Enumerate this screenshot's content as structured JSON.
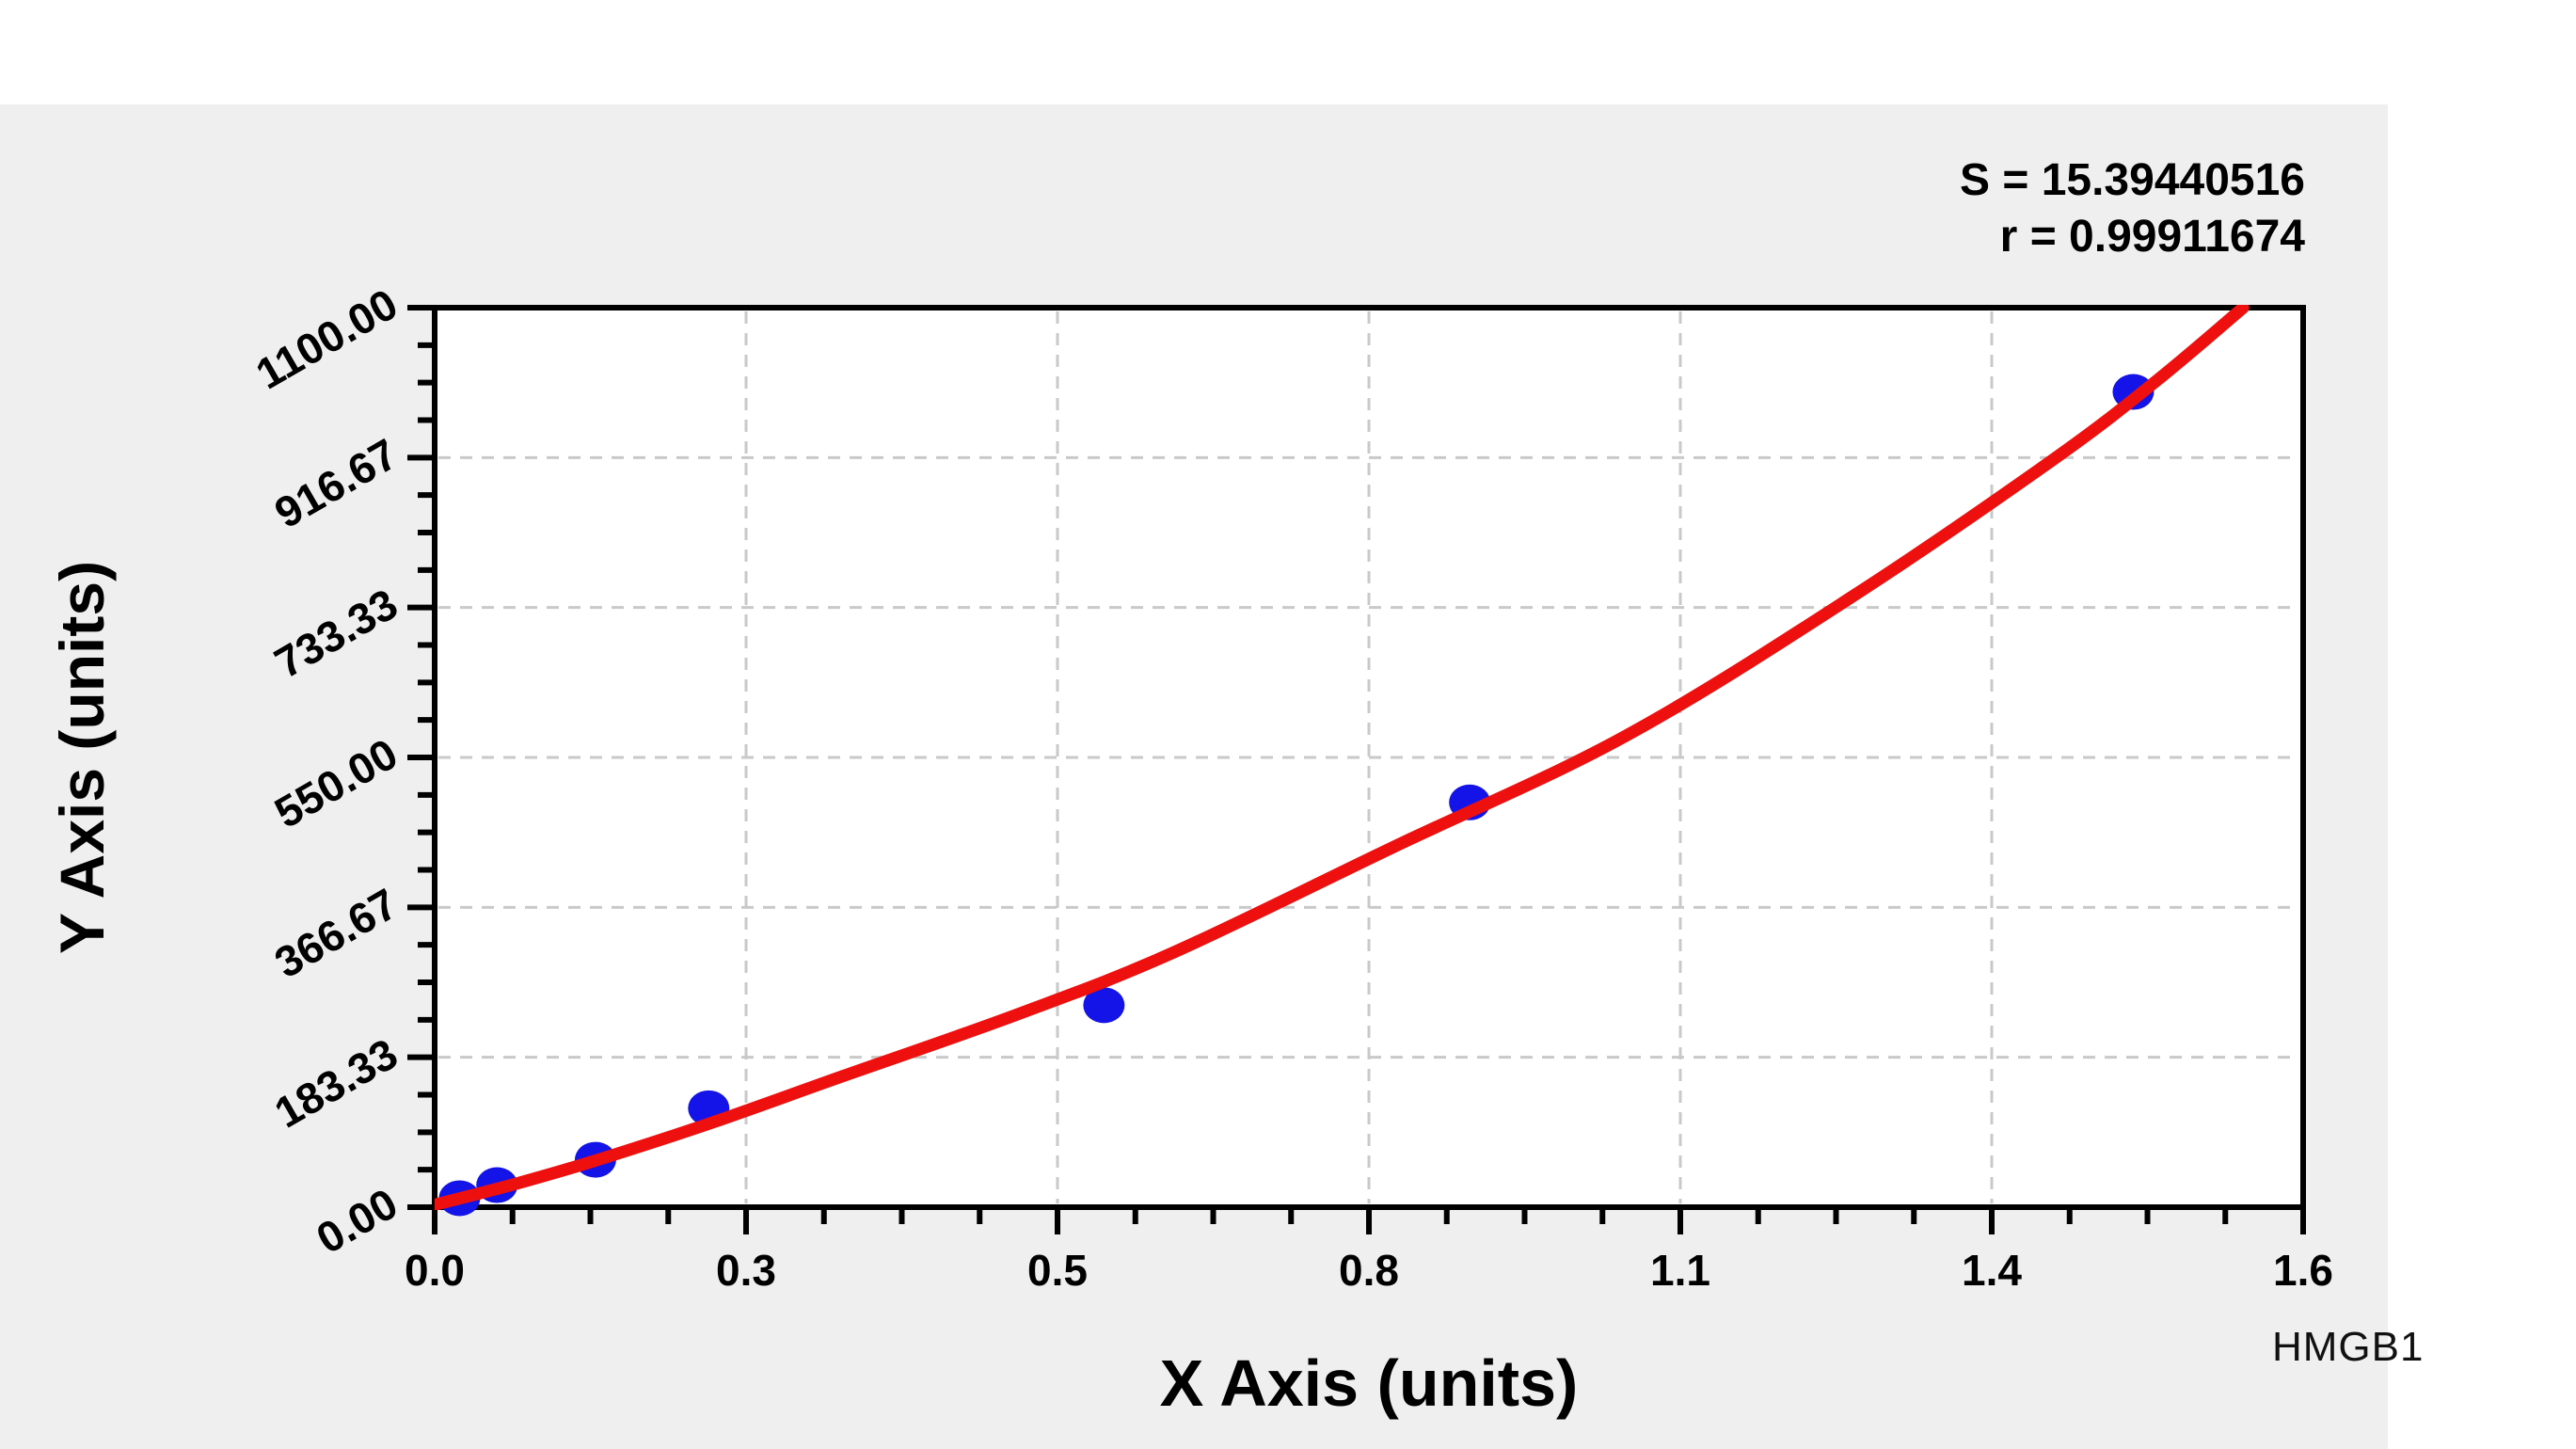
{
  "chart_data": {
    "type": "scatter",
    "title": "",
    "xlabel": "X Axis (units)",
    "ylabel": "Y Axis (units)",
    "xlim": [
      0,
      1.65
    ],
    "ylim": [
      0,
      1100
    ],
    "x_major_tick_values": [
      0,
      0.275,
      0.55,
      0.825,
      1.1,
      1.375,
      1.65
    ],
    "x_tick_labels": [
      "0.0",
      "0.3",
      "0.5",
      "0.8",
      "1.1",
      "1.4",
      "1.6"
    ],
    "y_major_tick_values": [
      0,
      183.33,
      366.67,
      550.0,
      733.33,
      916.67,
      1100.0
    ],
    "y_tick_labels": [
      "0.00",
      "183.33",
      "366.67",
      "550.00",
      "733.33",
      "916.67",
      "1100.00"
    ],
    "minor_ticks_per_major_interval": 3,
    "grid": {
      "style": "dashed",
      "at": "major-ticks",
      "on": true
    },
    "legend_position": "none",
    "series": [
      {
        "name": "standard-points",
        "type": "scatter",
        "color": "#1414e8",
        "points": [
          [
            0.022,
            11
          ],
          [
            0.055,
            27
          ],
          [
            0.142,
            58
          ],
          [
            0.242,
            121
          ],
          [
            0.591,
            247
          ],
          [
            0.914,
            495
          ],
          [
            1.5,
            997
          ]
        ]
      },
      {
        "name": "fitted-curve",
        "type": "line",
        "color": "#ee0f0f",
        "points": [
          [
            0,
            3
          ],
          [
            0.07,
            28
          ],
          [
            0.142,
            57
          ],
          [
            0.242,
            102
          ],
          [
            0.36,
            160
          ],
          [
            0.513,
            235
          ],
          [
            0.65,
            310
          ],
          [
            0.846,
            440
          ],
          [
            1.05,
            575
          ],
          [
            1.25,
            745
          ],
          [
            1.43,
            915
          ],
          [
            1.52,
            1010
          ],
          [
            1.597,
            1100
          ]
        ]
      }
    ],
    "annotations": {
      "s_value": "S = 15.39440516",
      "r_value": "r = 0.99911674",
      "corner_label": "HMGB1"
    }
  },
  "colors": {
    "page_background": "#ffffff",
    "panel_background": "#efefef",
    "plot_background": "#ffffff",
    "axis": "#000000",
    "grid": "#c9c9c9",
    "point": "#1414e8",
    "curve": "#ee0f0f",
    "text": "#000000"
  }
}
